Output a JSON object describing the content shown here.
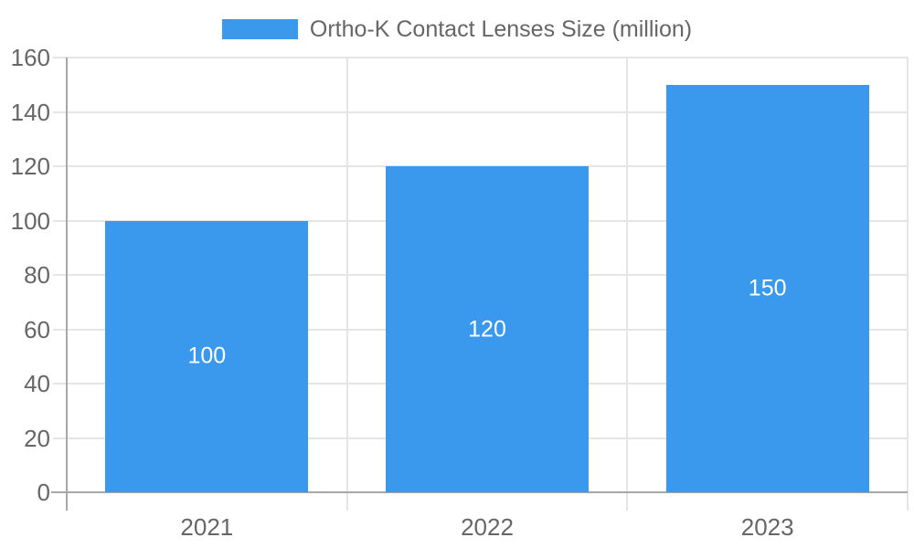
{
  "chart_data": {
    "type": "bar",
    "title": "Ortho-K Contact Lenses Size (million)",
    "categories": [
      "2021",
      "2022",
      "2023"
    ],
    "values": [
      100,
      120,
      150
    ],
    "series": [
      {
        "name": "Ortho-K Contact Lenses Size (million)",
        "values": [
          100,
          120,
          150
        ]
      }
    ],
    "xlabel": "",
    "ylabel": "",
    "ylim": [
      0,
      160
    ],
    "yticks": [
      0,
      20,
      40,
      60,
      80,
      100,
      120,
      140,
      160
    ],
    "grid": true,
    "legend_position": "top",
    "bar_width_fraction": 0.725,
    "data_labels_visible": true,
    "colors": {
      "bar": "#3B99ED",
      "grid": "#E5E5E5",
      "axis": "#A8A8A8",
      "text": "#666666",
      "data_label": "#FFFFFF"
    }
  }
}
